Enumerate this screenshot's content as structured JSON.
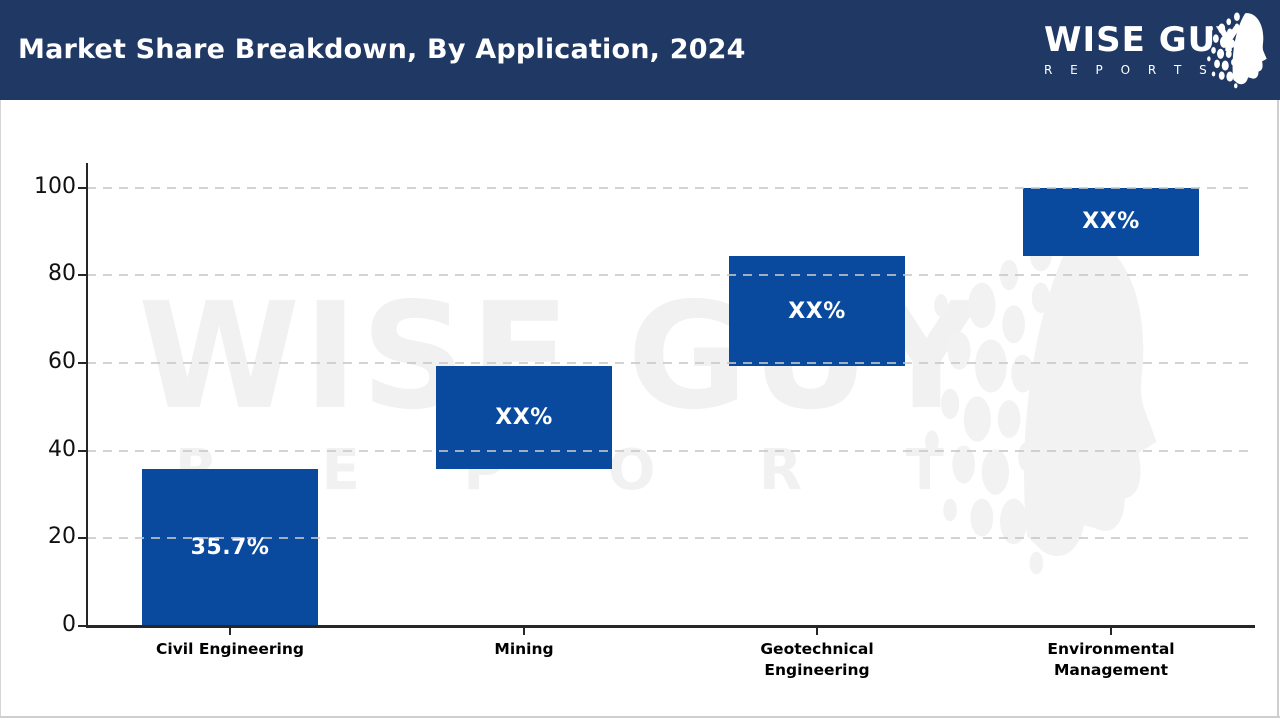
{
  "page": {
    "bg": "#ffffff",
    "frame_color": "#d6d6d6"
  },
  "header": {
    "bg": "#203864",
    "title": "Market Share Breakdown, By Application, 2024",
    "logo": {
      "name": "WISE GUY",
      "sub": "R E P O R T S"
    }
  },
  "watermark": {
    "line1": "WISE GUY",
    "line2": "R E P O R T S"
  },
  "chart_data": {
    "type": "bar",
    "subtype": "waterfall",
    "title": "Market Share Breakdown, By Application, 2024",
    "categories": [
      "Civil Engineering",
      "Mining",
      "Geotechnical\nEngineering",
      "Environmental\nManagement"
    ],
    "segments": [
      {
        "category": "Civil Engineering",
        "start": 0,
        "end": 35.7,
        "label": "35.7%"
      },
      {
        "category": "Mining",
        "start": 35.7,
        "end": 59.3,
        "label": "XX%"
      },
      {
        "category": "Geotechnical Engineering",
        "start": 59.3,
        "end": 84.3,
        "label": "XX%"
      },
      {
        "category": "Environmental Management",
        "start": 84.3,
        "end": 100,
        "label": "XX%"
      }
    ],
    "ylim": [
      0,
      100
    ],
    "yticks": [
      "0",
      "20",
      "40",
      "60",
      "80",
      "100"
    ],
    "grid": true,
    "legend": false,
    "bar_color": "#0a4a9e",
    "bar_label_color": "#ffffff",
    "axis_color": "#262626",
    "grid_color": "#d9d9d9",
    "tick_label_color": "#111111"
  }
}
